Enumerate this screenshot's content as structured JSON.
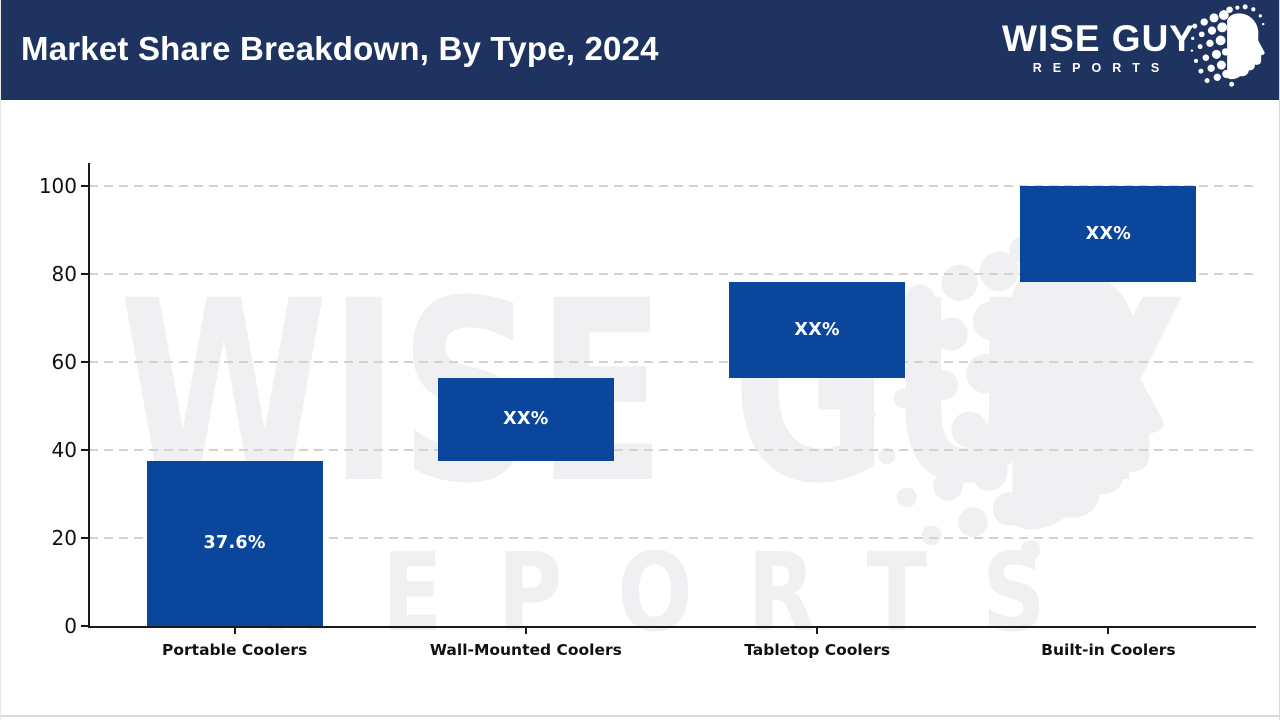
{
  "header": {
    "title": "Market Share Breakdown, By Type, 2024",
    "bg_color": "#1f3361",
    "logo": {
      "line1": "WISE GUY",
      "line2": "REPORTS",
      "head_icon": "head-profile-dots-icon"
    }
  },
  "watermark": {
    "line1": "WISE GUY",
    "line2": "REPORTS",
    "head_icon": "head-profile-dots-icon",
    "color": "#f0f0f3"
  },
  "chart_data": {
    "type": "bar",
    "subtype": "waterfall",
    "title": "Market Share Breakdown, By Type, 2024",
    "categories": [
      "Portable Coolers",
      "Wall-Mounted Coolers",
      "Tabletop Coolers",
      "Built-in Coolers"
    ],
    "bars": [
      {
        "category": "Portable Coolers",
        "start": 0,
        "end": 37.6,
        "label": "37.6%"
      },
      {
        "category": "Wall-Mounted Coolers",
        "start": 37.6,
        "end": 56.4,
        "label": "XX%"
      },
      {
        "category": "Tabletop Coolers",
        "start": 56.4,
        "end": 78.2,
        "label": "XX%"
      },
      {
        "category": "Built-in Coolers",
        "start": 78.2,
        "end": 100,
        "label": "XX%"
      }
    ],
    "ylim": [
      0,
      105
    ],
    "yticks": [
      0,
      20,
      40,
      60,
      80,
      100
    ],
    "grid": "horizontal-dashed",
    "legend": "none",
    "bar_color": "#0a479c",
    "bar_label_color": "#ffffff",
    "axis_color": "#1a1a1a"
  }
}
